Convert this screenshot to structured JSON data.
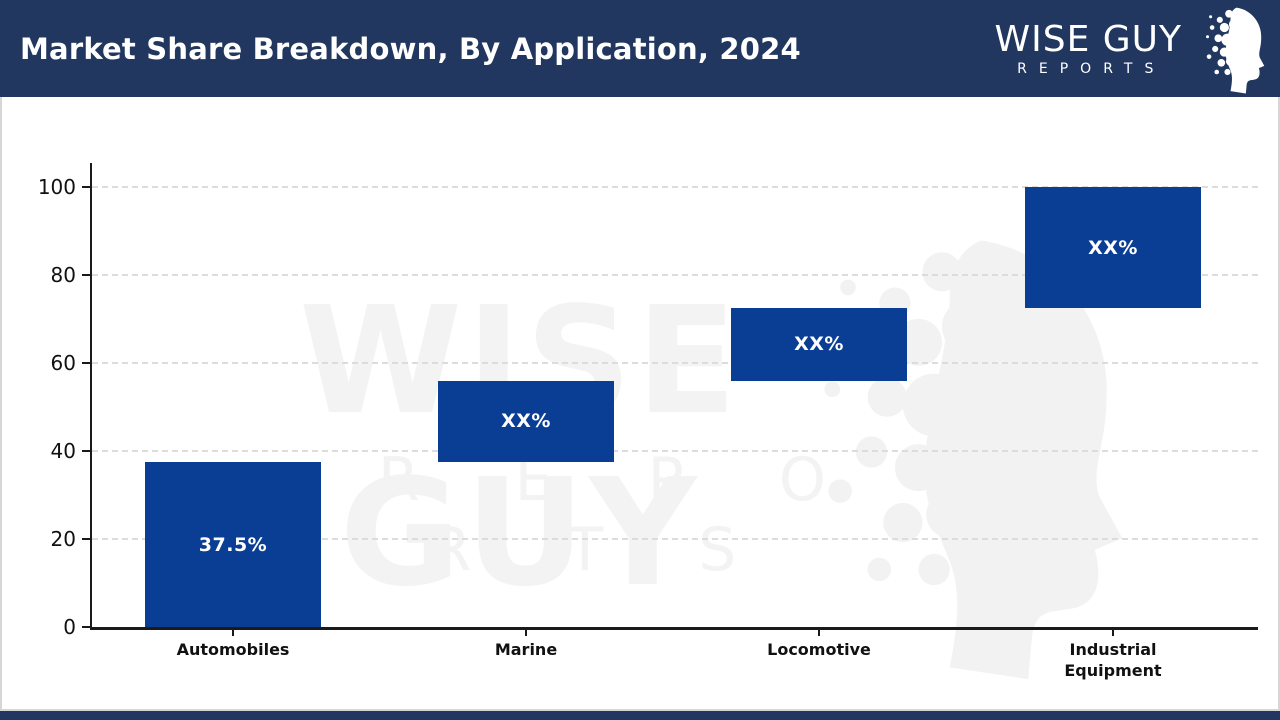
{
  "header": {
    "title": "Market Share Breakdown, By Application, 2024",
    "logo": {
      "wordmark": "WISE GUY",
      "subtext": "REPORTS"
    }
  },
  "watermark": {
    "wordmark": "WISE GUY",
    "subtext": "R E P O R T S"
  },
  "chart_data": {
    "type": "bar",
    "subtype": "waterfall",
    "title": "Market Share Breakdown, By Application, 2024",
    "categories": [
      "Automobiles",
      "Marine",
      "Locomotive",
      "Industrial Equipment"
    ],
    "segments": [
      {
        "category": "Automobiles",
        "start": 0,
        "end": 37.5,
        "label": "37.5%"
      },
      {
        "category": "Marine",
        "start": 37.5,
        "end": 56,
        "label": "XX%"
      },
      {
        "category": "Locomotive",
        "start": 56,
        "end": 72.5,
        "label": "XX%"
      },
      {
        "category": "Industrial Equipment",
        "start": 72.5,
        "end": 100,
        "label": "XX%"
      }
    ],
    "xlabel": "",
    "ylabel": "",
    "yticks": [
      0,
      20,
      40,
      60,
      80,
      100
    ],
    "ylim": [
      0,
      105
    ],
    "grid": "horizontal-dashed",
    "legend": "none",
    "bar_color": "#0a3e94",
    "bar_label_color": "#ffffff",
    "header_color": "#21375f"
  }
}
